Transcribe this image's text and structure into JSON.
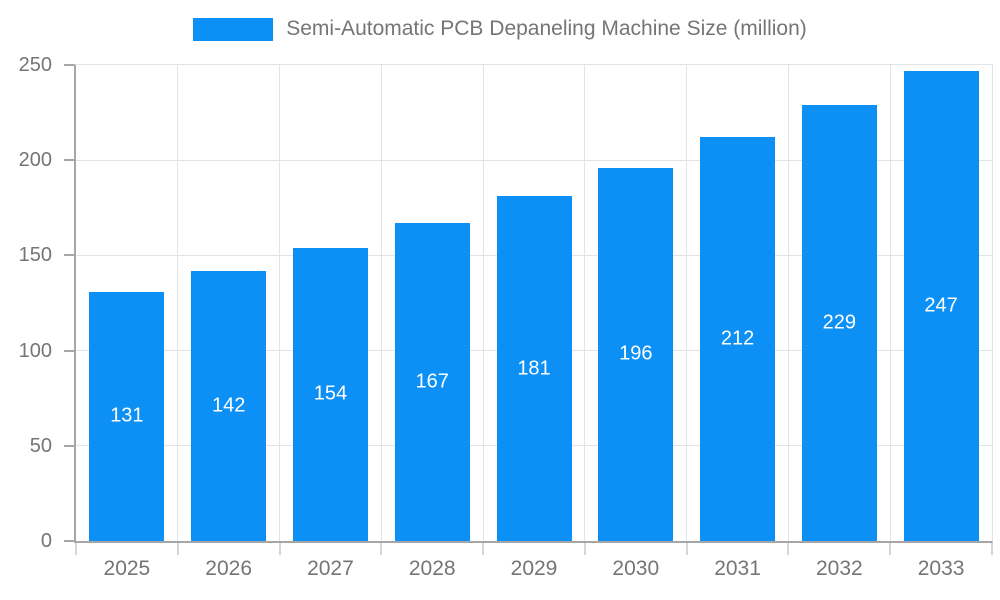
{
  "chart_data": {
    "type": "bar",
    "title": "Semi-Automatic PCB Depaneling Machine Size (million)",
    "categories": [
      "2025",
      "2026",
      "2027",
      "2028",
      "2029",
      "2030",
      "2031",
      "2032",
      "2033"
    ],
    "values": [
      131,
      142,
      154,
      167,
      181,
      196,
      212,
      229,
      247
    ],
    "series": [
      {
        "name": "Semi-Automatic PCB Depaneling Machine Size (million)",
        "values": [
          131,
          142,
          154,
          167,
          181,
          196,
          212,
          229,
          247
        ]
      }
    ],
    "xlabel": "",
    "ylabel": "",
    "ylim": [
      0,
      250
    ],
    "yticks": [
      0,
      50,
      100,
      150,
      200,
      250
    ],
    "grid": true,
    "legend_position": "top",
    "value_labels": "inside-center",
    "colors": {
      "bar": "#0d90f5",
      "bar_value_text": "#ffffff",
      "axis_text": "#757575",
      "axis_line": "#a6a6a6",
      "gridline": "#e4e4e4",
      "background": "#ffffff"
    }
  }
}
